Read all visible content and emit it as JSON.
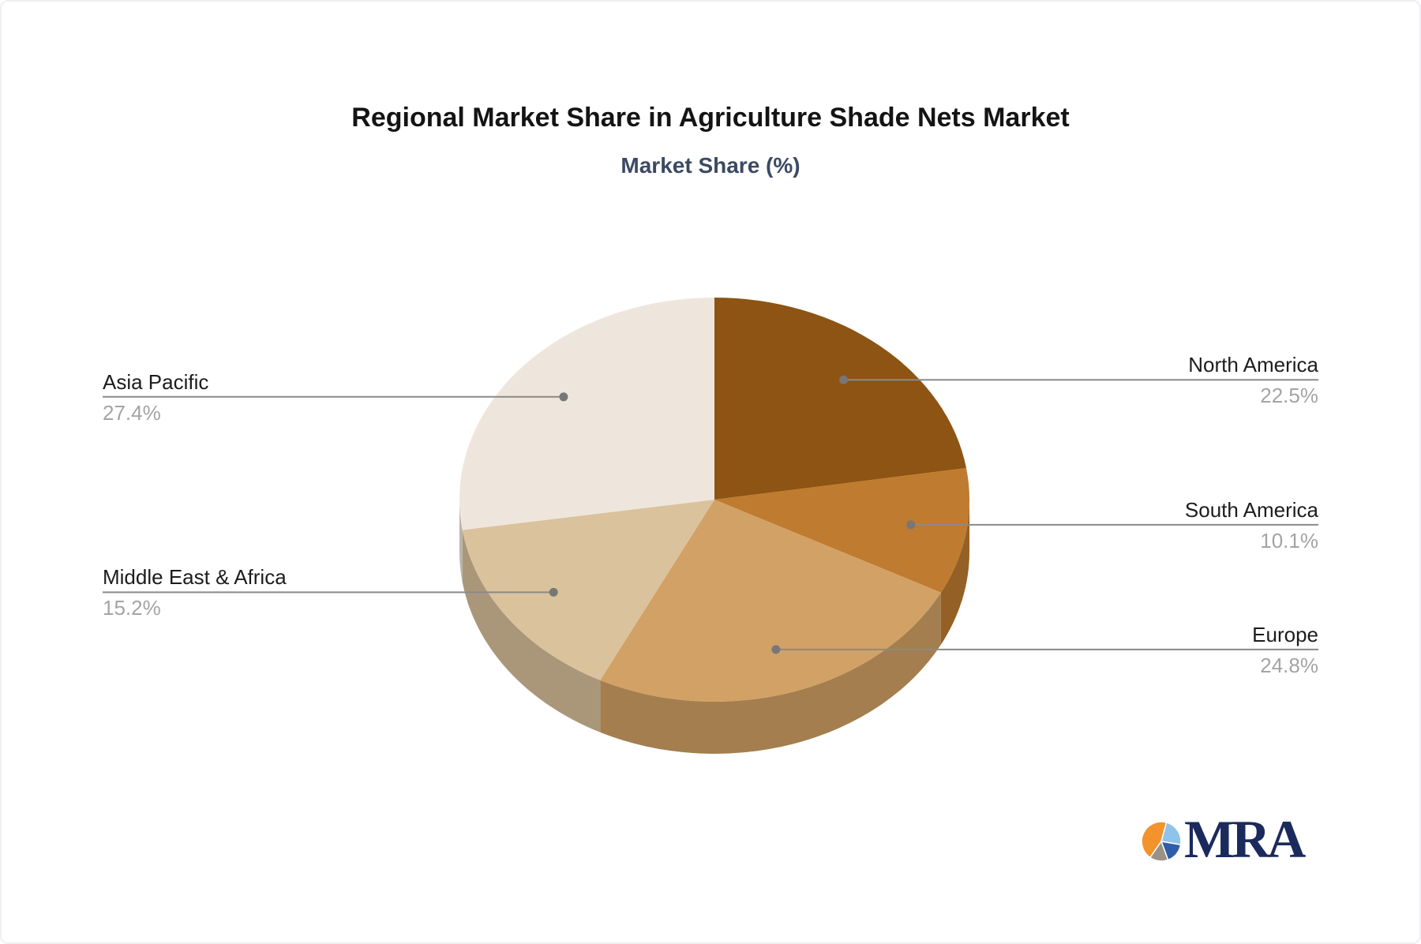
{
  "header": {
    "title": "Regional Market Share in Agriculture Shade Nets Market",
    "subtitle": "Market Share (%)"
  },
  "chart_data": {
    "type": "pie",
    "style": "3d",
    "title": "Regional Market Share in Agriculture Shade Nets Market",
    "subtitle": "Market Share (%)",
    "unit": "%",
    "start_angle_deg": 0,
    "direction": "clockwise",
    "categories": [
      "North America",
      "South America",
      "Europe",
      "Middle East & Africa",
      "Asia Pacific"
    ],
    "values": [
      22.5,
      10.1,
      24.8,
      15.2,
      27.4
    ],
    "colors": [
      "#8d5413",
      "#bf7b2f",
      "#d2a165",
      "#dac29c",
      "#eee6dc"
    ],
    "label_name_color": "#1c1c1c",
    "label_value_color": "#a4a4a6",
    "leader_line_color": "#8a8a8a",
    "leader_dot_color": "#777777",
    "legend": "none"
  },
  "logo": {
    "text": "MRA",
    "text_color": "#1b2a5c",
    "mark_slices": [
      {
        "name": "light-blue",
        "color": "#8fc3ea",
        "from": 15,
        "to": 100
      },
      {
        "name": "dark-blue",
        "color": "#2f5da8",
        "from": 100,
        "to": 160
      },
      {
        "name": "gray",
        "color": "#9c9185",
        "from": 160,
        "to": 215
      },
      {
        "name": "orange",
        "color": "#f2932c",
        "from": 215,
        "to": 375
      }
    ]
  }
}
